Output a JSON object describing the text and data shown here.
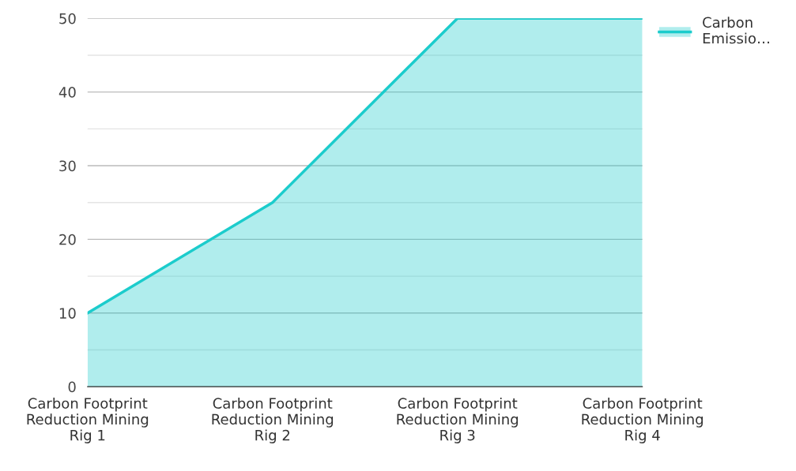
{
  "chart_data": {
    "type": "area",
    "categories": [
      "Carbon Footprint\nReduction Mining\nRig 1",
      "Carbon Footprint\nReduction Mining\nRig 2",
      "Carbon Footprint\nReduction Mining\nRig 3",
      "Carbon Footprint\nReduction Mining\nRig 4"
    ],
    "series": [
      {
        "name": "Carbon\nEmissio…",
        "color": "#1ccccc",
        "values": [
          10,
          25,
          50,
          50
        ]
      }
    ],
    "ylim": [
      0,
      50
    ],
    "yticks": [
      0,
      {
        "value": 5,
        "label": null
      },
      10,
      {
        "value": 15,
        "label": null
      },
      20,
      {
        "value": 25,
        "label": null
      },
      30,
      {
        "value": 35,
        "label": null
      },
      40,
      {
        "value": 45,
        "label": null
      },
      50
    ],
    "grid": "y",
    "legend": "top right",
    "marker": "none",
    "line_style": "solid"
  }
}
